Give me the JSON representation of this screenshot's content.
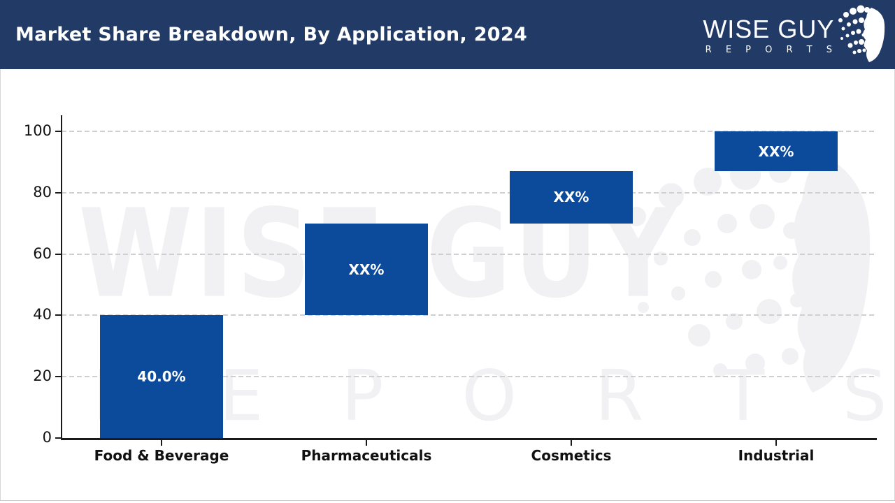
{
  "header": {
    "title": "Market Share Breakdown, By Application, 2024",
    "logo": {
      "name": "WISE GUY",
      "tagline": "R E P O R T S"
    }
  },
  "watermark": {
    "line1": "WISE GUY",
    "line2": "R E P O R T S"
  },
  "colors": {
    "header_bg": "#213A66",
    "bar": "#0C4A9C",
    "gridline": "#CFCFCF",
    "axis": "#1A1A1A",
    "bar_label_text": "#FFFFFF",
    "watermark": "#F1F1F4"
  },
  "chart_data": {
    "type": "bar",
    "subtype": "waterfall",
    "title": "Market Share Breakdown, By Application, 2024",
    "xlabel": "",
    "ylabel": "",
    "categories": [
      "Food & Beverage",
      "Pharmaceuticals",
      "Cosmetics",
      "Industrial"
    ],
    "bars": [
      {
        "category": "Food & Beverage",
        "start": 0,
        "end": 40,
        "value": 40,
        "label": "40.0%"
      },
      {
        "category": "Pharmaceuticals",
        "start": 40,
        "end": 70,
        "value": 30,
        "label": "XX%"
      },
      {
        "category": "Cosmetics",
        "start": 70,
        "end": 87,
        "value": 17,
        "label": "XX%"
      },
      {
        "category": "Industrial",
        "start": 87,
        "end": 100,
        "value": 13,
        "label": "XX%"
      }
    ],
    "yticks": [
      0,
      20,
      40,
      60,
      80,
      100
    ],
    "ylim": [
      0,
      105
    ],
    "units": "%",
    "grid": true,
    "grid_style": "dashed",
    "legend": false,
    "bar_color": "#0C4A9C"
  }
}
